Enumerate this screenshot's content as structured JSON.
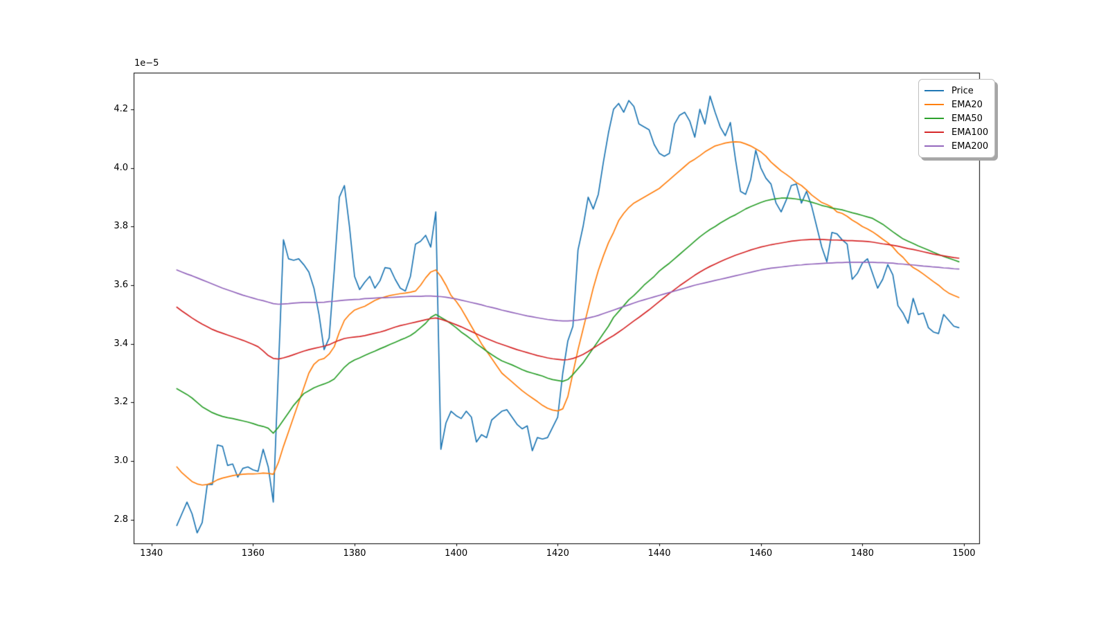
{
  "figure": {
    "background_color": "#ffffff",
    "text_color": "#000000"
  },
  "chart_data": {
    "type": "line",
    "title": "",
    "xlabel": "",
    "ylabel": "",
    "offset_text": "1e−5",
    "grid": false,
    "xlim": [
      1336.5,
      1503.0
    ],
    "ylim": [
      2.719,
      4.325
    ],
    "xticks": [
      1340,
      1360,
      1380,
      1400,
      1420,
      1440,
      1460,
      1480,
      1500
    ],
    "yticks": [
      2.8,
      3.0,
      3.2,
      3.4,
      3.6,
      3.8,
      4.0,
      4.2
    ],
    "legend": {
      "location": "upper right",
      "entries": [
        "Price",
        "EMA20",
        "EMA50",
        "EMA100",
        "EMA200"
      ]
    },
    "x_start": 1345,
    "x_step": 1,
    "series": [
      {
        "name": "Price",
        "color": "#1f77b4",
        "values": [
          2.78,
          2.82,
          2.86,
          2.82,
          2.755,
          2.79,
          2.92,
          2.92,
          3.055,
          3.05,
          2.985,
          2.99,
          2.945,
          2.975,
          2.98,
          2.97,
          2.965,
          3.04,
          2.98,
          2.86,
          3.31,
          3.755,
          3.69,
          3.685,
          3.69,
          3.67,
          3.645,
          3.59,
          3.5,
          3.38,
          3.42,
          3.65,
          3.9,
          3.94,
          3.8,
          3.63,
          3.585,
          3.61,
          3.63,
          3.59,
          3.615,
          3.66,
          3.657,
          3.62,
          3.59,
          3.58,
          3.63,
          3.74,
          3.75,
          3.77,
          3.73,
          3.85,
          3.04,
          3.13,
          3.17,
          3.155,
          3.145,
          3.17,
          3.15,
          3.065,
          3.09,
          3.08,
          3.14,
          3.155,
          3.17,
          3.175,
          3.15,
          3.125,
          3.11,
          3.12,
          3.035,
          3.08,
          3.075,
          3.08,
          3.115,
          3.15,
          3.3,
          3.41,
          3.46,
          3.72,
          3.8,
          3.9,
          3.86,
          3.91,
          4.02,
          4.12,
          4.2,
          4.22,
          4.19,
          4.23,
          4.21,
          4.15,
          4.14,
          4.13,
          4.08,
          4.05,
          4.04,
          4.05,
          4.15,
          4.18,
          4.19,
          4.16,
          4.105,
          4.2,
          4.15,
          4.245,
          4.19,
          4.14,
          4.11,
          4.155,
          4.03,
          3.92,
          3.91,
          3.96,
          4.06,
          4.0,
          3.965,
          3.945,
          3.88,
          3.85,
          3.89,
          3.94,
          3.945,
          3.88,
          3.92,
          3.87,
          3.8,
          3.73,
          3.68,
          3.78,
          3.775,
          3.755,
          3.74,
          3.62,
          3.64,
          3.675,
          3.69,
          3.64,
          3.59,
          3.62,
          3.67,
          3.635,
          3.53,
          3.505,
          3.47,
          3.555,
          3.5,
          3.505,
          3.455,
          3.44,
          3.435,
          3.5,
          3.48,
          3.46,
          3.455
        ]
      },
      {
        "name": "EMA20",
        "color": "#ff7f0e",
        "values": [
          2.98,
          2.96,
          2.945,
          2.93,
          2.922,
          2.918,
          2.92,
          2.926,
          2.936,
          2.942,
          2.946,
          2.95,
          2.953,
          2.955,
          2.956,
          2.956,
          2.957,
          2.959,
          2.958,
          2.955,
          2.995,
          3.05,
          3.1,
          3.15,
          3.2,
          3.25,
          3.3,
          3.33,
          3.345,
          3.35,
          3.365,
          3.39,
          3.44,
          3.48,
          3.5,
          3.515,
          3.522,
          3.528,
          3.538,
          3.548,
          3.555,
          3.56,
          3.565,
          3.568,
          3.571,
          3.573,
          3.576,
          3.58,
          3.6,
          3.625,
          3.645,
          3.652,
          3.63,
          3.6,
          3.565,
          3.545,
          3.52,
          3.49,
          3.46,
          3.43,
          3.4,
          3.375,
          3.35,
          3.325,
          3.3,
          3.285,
          3.27,
          3.255,
          3.24,
          3.227,
          3.215,
          3.203,
          3.19,
          3.18,
          3.174,
          3.171,
          3.178,
          3.22,
          3.3,
          3.38,
          3.45,
          3.52,
          3.59,
          3.65,
          3.7,
          3.745,
          3.78,
          3.82,
          3.845,
          3.865,
          3.88,
          3.89,
          3.9,
          3.91,
          3.92,
          3.93,
          3.945,
          3.96,
          3.975,
          3.99,
          4.005,
          4.02,
          4.03,
          4.042,
          4.055,
          4.065,
          4.075,
          4.08,
          4.085,
          4.088,
          4.089,
          4.088,
          4.082,
          4.075,
          4.065,
          4.055,
          4.04,
          4.02,
          4.005,
          3.99,
          3.978,
          3.965,
          3.95,
          3.94,
          3.925,
          3.908,
          3.895,
          3.882,
          3.875,
          3.866,
          3.85,
          3.845,
          3.835,
          3.822,
          3.812,
          3.8,
          3.792,
          3.782,
          3.77,
          3.757,
          3.745,
          3.73,
          3.71,
          3.695,
          3.675,
          3.66,
          3.65,
          3.638,
          3.625,
          3.612,
          3.6,
          3.585,
          3.573,
          3.565,
          3.558
        ]
      },
      {
        "name": "EMA50",
        "color": "#2ca02c",
        "values": [
          3.247,
          3.237,
          3.227,
          3.215,
          3.2,
          3.185,
          3.175,
          3.165,
          3.158,
          3.152,
          3.148,
          3.145,
          3.141,
          3.137,
          3.133,
          3.128,
          3.122,
          3.118,
          3.112,
          3.095,
          3.115,
          3.14,
          3.165,
          3.19,
          3.21,
          3.23,
          3.24,
          3.25,
          3.257,
          3.263,
          3.27,
          3.28,
          3.3,
          3.32,
          3.335,
          3.345,
          3.352,
          3.36,
          3.368,
          3.375,
          3.383,
          3.39,
          3.398,
          3.405,
          3.413,
          3.42,
          3.428,
          3.44,
          3.455,
          3.47,
          3.49,
          3.5,
          3.49,
          3.48,
          3.468,
          3.455,
          3.44,
          3.428,
          3.415,
          3.4,
          3.388,
          3.375,
          3.363,
          3.352,
          3.342,
          3.335,
          3.328,
          3.32,
          3.312,
          3.305,
          3.3,
          3.295,
          3.29,
          3.283,
          3.278,
          3.275,
          3.272,
          3.278,
          3.295,
          3.315,
          3.335,
          3.36,
          3.385,
          3.41,
          3.435,
          3.46,
          3.49,
          3.51,
          3.53,
          3.55,
          3.565,
          3.582,
          3.6,
          3.615,
          3.63,
          3.648,
          3.662,
          3.675,
          3.69,
          3.705,
          3.72,
          3.735,
          3.75,
          3.765,
          3.778,
          3.79,
          3.8,
          3.812,
          3.822,
          3.832,
          3.84,
          3.85,
          3.86,
          3.868,
          3.875,
          3.882,
          3.888,
          3.892,
          3.895,
          3.897,
          3.897,
          3.896,
          3.894,
          3.891,
          3.888,
          3.883,
          3.878,
          3.872,
          3.868,
          3.863,
          3.86,
          3.857,
          3.852,
          3.847,
          3.843,
          3.838,
          3.833,
          3.828,
          3.818,
          3.808,
          3.795,
          3.782,
          3.77,
          3.758,
          3.75,
          3.742,
          3.734,
          3.727,
          3.72,
          3.712,
          3.705,
          3.698,
          3.692,
          3.686,
          3.68
        ]
      },
      {
        "name": "EMA100",
        "color": "#d62728",
        "values": [
          3.525,
          3.512,
          3.5,
          3.488,
          3.477,
          3.467,
          3.458,
          3.449,
          3.442,
          3.436,
          3.43,
          3.424,
          3.418,
          3.412,
          3.405,
          3.398,
          3.39,
          3.376,
          3.36,
          3.35,
          3.348,
          3.352,
          3.357,
          3.363,
          3.369,
          3.375,
          3.38,
          3.384,
          3.388,
          3.392,
          3.397,
          3.405,
          3.412,
          3.418,
          3.421,
          3.423,
          3.425,
          3.428,
          3.432,
          3.436,
          3.44,
          3.445,
          3.451,
          3.457,
          3.462,
          3.466,
          3.47,
          3.474,
          3.478,
          3.482,
          3.486,
          3.488,
          3.484,
          3.478,
          3.472,
          3.465,
          3.458,
          3.45,
          3.442,
          3.434,
          3.426,
          3.418,
          3.411,
          3.404,
          3.398,
          3.392,
          3.386,
          3.38,
          3.375,
          3.37,
          3.365,
          3.36,
          3.356,
          3.352,
          3.349,
          3.347,
          3.345,
          3.346,
          3.35,
          3.356,
          3.364,
          3.374,
          3.385,
          3.396,
          3.407,
          3.418,
          3.428,
          3.44,
          3.452,
          3.465,
          3.478,
          3.49,
          3.503,
          3.516,
          3.53,
          3.544,
          3.558,
          3.572,
          3.585,
          3.598,
          3.61,
          3.622,
          3.634,
          3.645,
          3.655,
          3.664,
          3.672,
          3.68,
          3.688,
          3.695,
          3.702,
          3.708,
          3.714,
          3.72,
          3.725,
          3.73,
          3.734,
          3.738,
          3.741,
          3.744,
          3.747,
          3.75,
          3.752,
          3.754,
          3.755,
          3.756,
          3.756,
          3.756,
          3.755,
          3.754,
          3.754,
          3.753,
          3.752,
          3.752,
          3.751,
          3.75,
          3.749,
          3.747,
          3.744,
          3.741,
          3.739,
          3.736,
          3.733,
          3.729,
          3.725,
          3.722,
          3.718,
          3.714,
          3.71,
          3.706,
          3.703,
          3.7,
          3.697,
          3.694,
          3.692
        ]
      },
      {
        "name": "EMA200",
        "color": "#9467bd",
        "values": [
          3.652,
          3.645,
          3.638,
          3.632,
          3.625,
          3.618,
          3.611,
          3.604,
          3.597,
          3.59,
          3.584,
          3.578,
          3.572,
          3.566,
          3.561,
          3.556,
          3.551,
          3.547,
          3.542,
          3.537,
          3.535,
          3.536,
          3.537,
          3.539,
          3.54,
          3.541,
          3.541,
          3.541,
          3.541,
          3.542,
          3.544,
          3.545,
          3.547,
          3.549,
          3.55,
          3.551,
          3.552,
          3.554,
          3.555,
          3.556,
          3.557,
          3.557,
          3.558,
          3.559,
          3.56,
          3.561,
          3.562,
          3.562,
          3.562,
          3.563,
          3.563,
          3.562,
          3.561,
          3.559,
          3.556,
          3.553,
          3.549,
          3.545,
          3.541,
          3.537,
          3.533,
          3.528,
          3.524,
          3.52,
          3.515,
          3.511,
          3.507,
          3.503,
          3.499,
          3.495,
          3.492,
          3.489,
          3.486,
          3.483,
          3.481,
          3.479,
          3.478,
          3.478,
          3.479,
          3.481,
          3.484,
          3.488,
          3.492,
          3.497,
          3.503,
          3.509,
          3.515,
          3.521,
          3.527,
          3.533,
          3.539,
          3.545,
          3.55,
          3.555,
          3.56,
          3.565,
          3.57,
          3.575,
          3.58,
          3.585,
          3.59,
          3.595,
          3.6,
          3.604,
          3.608,
          3.612,
          3.616,
          3.62,
          3.624,
          3.628,
          3.632,
          3.636,
          3.64,
          3.644,
          3.648,
          3.652,
          3.655,
          3.658,
          3.66,
          3.662,
          3.664,
          3.666,
          3.668,
          3.669,
          3.671,
          3.672,
          3.673,
          3.674,
          3.675,
          3.676,
          3.677,
          3.677,
          3.678,
          3.678,
          3.678,
          3.678,
          3.678,
          3.678,
          3.677,
          3.677,
          3.676,
          3.675,
          3.673,
          3.672,
          3.67,
          3.669,
          3.667,
          3.665,
          3.664,
          3.662,
          3.661,
          3.659,
          3.658,
          3.656,
          3.655
        ]
      }
    ]
  }
}
